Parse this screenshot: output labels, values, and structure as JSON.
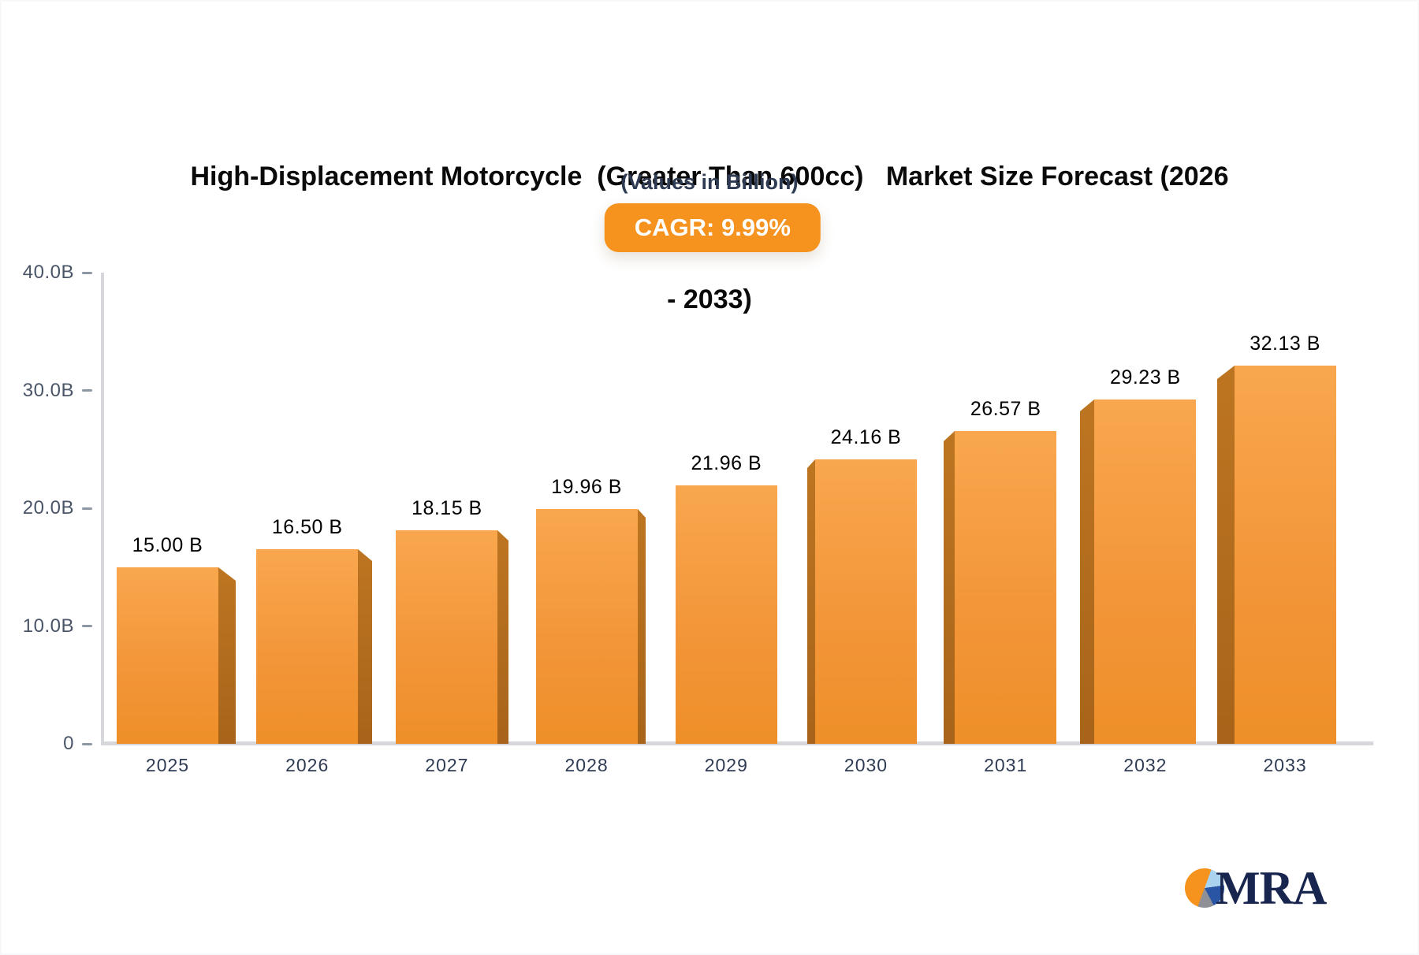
{
  "header": {
    "title_line1": "High-Displacement Motorcycle  (Greater Than 600cc)   Market Size Forecast (2026",
    "title_line2": "- 2033)",
    "subtitle": "(Values in Billion)",
    "cagr_badge": "CAGR: 9.99%"
  },
  "chart_data": {
    "type": "bar",
    "title": "High-Displacement Motorcycle (Greater Than 600cc) Market Size Forecast (2026 - 2033)",
    "subtitle": "(Values in Billion)",
    "cagr_pct": 9.99,
    "categories": [
      "2025",
      "2026",
      "2027",
      "2028",
      "2029",
      "2030",
      "2031",
      "2032",
      "2033"
    ],
    "values": [
      15.0,
      16.5,
      18.15,
      19.96,
      21.96,
      24.16,
      26.57,
      29.23,
      32.13
    ],
    "value_labels": [
      "15.00 B",
      "16.50 B",
      "18.15 B",
      "19.96 B",
      "21.96 B",
      "24.16 B",
      "26.57 B",
      "29.23 B",
      "32.13 B"
    ],
    "xlabel": "",
    "ylabel": "",
    "ylim": [
      0,
      40
    ],
    "y_tick_labels": [
      "40.0B",
      "30.0B",
      "20.0B",
      "10.0B",
      "0"
    ],
    "y_tick_values": [
      40,
      30,
      20,
      10,
      0
    ],
    "grid": false,
    "legend": false,
    "bar_style": "3d-extruded-center-perspective",
    "colors": {
      "bar_face_top": "#f9a74e",
      "bar_face_mid": "#f3963a",
      "bar_face_bottom": "#ee8f28",
      "bar_side_top": "#bd7521",
      "bar_side_bottom": "#a7641a",
      "axis_line": "#d5d7da",
      "tick_dash": "#8e98a4",
      "y_tick_label": "#4a5568",
      "x_label": "#2f3b54",
      "value_label": "#000000",
      "badge_bg": "#f6921e",
      "badge_text": "#ffffff",
      "subtitle_text": "#2e3b52",
      "title_text": "#0a0a0a",
      "logo_navy": "#18254e",
      "logo_orange": "#f6921e",
      "logo_lightblue": "#a9d3ee",
      "logo_blue": "#2a55a4",
      "logo_gray": "#8f8f98"
    }
  },
  "footer": {
    "logo_text": "MRA"
  }
}
